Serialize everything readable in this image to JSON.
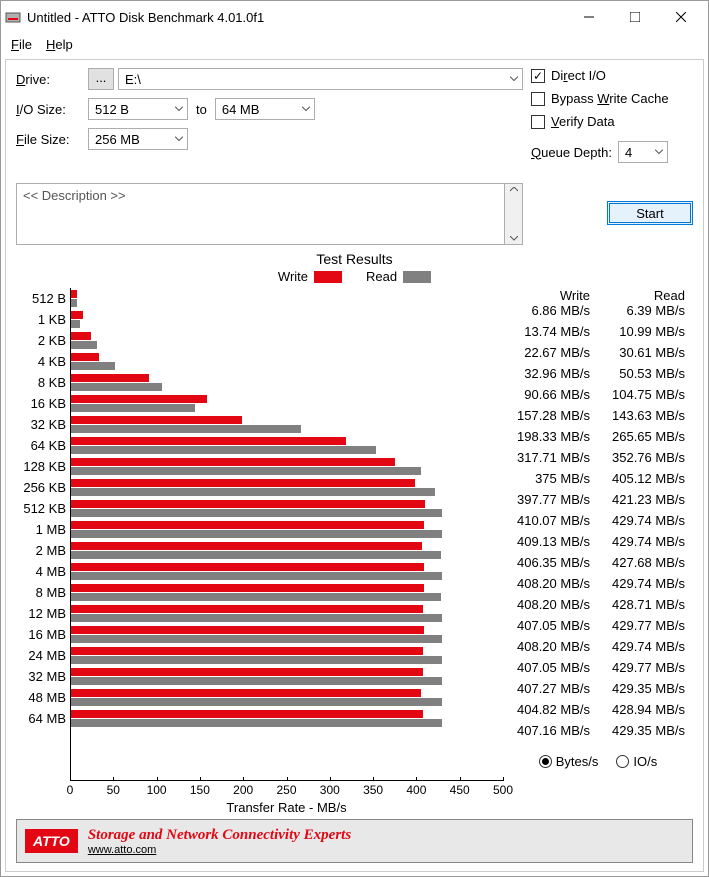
{
  "window": {
    "title": "Untitled - ATTO Disk Benchmark 4.01.0f1"
  },
  "menu": {
    "file": "File",
    "help": "Help"
  },
  "form": {
    "drive_label": "Drive:",
    "drive_btn": "...",
    "drive_value": "E:\\",
    "io_label": "I/O Size:",
    "io_from": "512 B",
    "io_to_label": "to",
    "io_to": "64 MB",
    "filesize_label": "File Size:",
    "filesize_value": "256 MB",
    "direct_io": "Direct I/O",
    "bypass": "Bypass Write Cache",
    "verify": "Verify Data",
    "queue_label": "Queue Depth:",
    "queue_value": "4",
    "description_placeholder": "<< Description >>",
    "start": "Start"
  },
  "results": {
    "title": "Test Results",
    "write_label": "Write",
    "read_label": "Read",
    "write_header": "Write",
    "read_header": "Read",
    "xaxis_label": "Transfer Rate - MB/s",
    "bytes_label": "Bytes/s",
    "ios_label": "IO/s",
    "colors": {
      "write": "#e30613",
      "read": "#808080"
    },
    "xmax": 500,
    "xticks": [
      0,
      50,
      100,
      150,
      200,
      250,
      300,
      350,
      400,
      450,
      500
    ],
    "rows": [
      {
        "label": "512 B",
        "write": 6.86,
        "read": 6.39,
        "write_s": "6.86 MB/s",
        "read_s": "6.39 MB/s"
      },
      {
        "label": "1 KB",
        "write": 13.74,
        "read": 10.99,
        "write_s": "13.74 MB/s",
        "read_s": "10.99 MB/s"
      },
      {
        "label": "2 KB",
        "write": 22.67,
        "read": 30.61,
        "write_s": "22.67 MB/s",
        "read_s": "30.61 MB/s"
      },
      {
        "label": "4 KB",
        "write": 32.96,
        "read": 50.53,
        "write_s": "32.96 MB/s",
        "read_s": "50.53 MB/s"
      },
      {
        "label": "8 KB",
        "write": 90.66,
        "read": 104.75,
        "write_s": "90.66 MB/s",
        "read_s": "104.75 MB/s"
      },
      {
        "label": "16 KB",
        "write": 157.28,
        "read": 143.63,
        "write_s": "157.28 MB/s",
        "read_s": "143.63 MB/s"
      },
      {
        "label": "32 KB",
        "write": 198.33,
        "read": 265.65,
        "write_s": "198.33 MB/s",
        "read_s": "265.65 MB/s"
      },
      {
        "label": "64 KB",
        "write": 317.71,
        "read": 352.76,
        "write_s": "317.71 MB/s",
        "read_s": "352.76 MB/s"
      },
      {
        "label": "128 KB",
        "write": 375,
        "read": 405.12,
        "write_s": "375 MB/s",
        "read_s": "405.12 MB/s"
      },
      {
        "label": "256 KB",
        "write": 397.77,
        "read": 421.23,
        "write_s": "397.77 MB/s",
        "read_s": "421.23 MB/s"
      },
      {
        "label": "512 KB",
        "write": 410.07,
        "read": 429.74,
        "write_s": "410.07 MB/s",
        "read_s": "429.74 MB/s"
      },
      {
        "label": "1 MB",
        "write": 409.13,
        "read": 429.74,
        "write_s": "409.13 MB/s",
        "read_s": "429.74 MB/s"
      },
      {
        "label": "2 MB",
        "write": 406.35,
        "read": 427.68,
        "write_s": "406.35 MB/s",
        "read_s": "427.68 MB/s"
      },
      {
        "label": "4 MB",
        "write": 408.2,
        "read": 429.74,
        "write_s": "408.20 MB/s",
        "read_s": "429.74 MB/s"
      },
      {
        "label": "8 MB",
        "write": 408.2,
        "read": 428.71,
        "write_s": "408.20 MB/s",
        "read_s": "428.71 MB/s"
      },
      {
        "label": "12 MB",
        "write": 407.05,
        "read": 429.77,
        "write_s": "407.05 MB/s",
        "read_s": "429.77 MB/s"
      },
      {
        "label": "16 MB",
        "write": 408.2,
        "read": 429.74,
        "write_s": "408.20 MB/s",
        "read_s": "429.74 MB/s"
      },
      {
        "label": "24 MB",
        "write": 407.05,
        "read": 429.77,
        "write_s": "407.05 MB/s",
        "read_s": "429.77 MB/s"
      },
      {
        "label": "32 MB",
        "write": 407.27,
        "read": 429.35,
        "write_s": "407.27 MB/s",
        "read_s": "429.35 MB/s"
      },
      {
        "label": "48 MB",
        "write": 404.82,
        "read": 428.94,
        "write_s": "404.82 MB/s",
        "read_s": "428.94 MB/s"
      },
      {
        "label": "64 MB",
        "write": 407.16,
        "read": 429.35,
        "write_s": "407.16 MB/s",
        "read_s": "429.35 MB/s"
      }
    ]
  },
  "banner": {
    "logo": "ATTO",
    "main": "Storage and Network Connectivity Experts",
    "sub": "www.atto.com"
  }
}
